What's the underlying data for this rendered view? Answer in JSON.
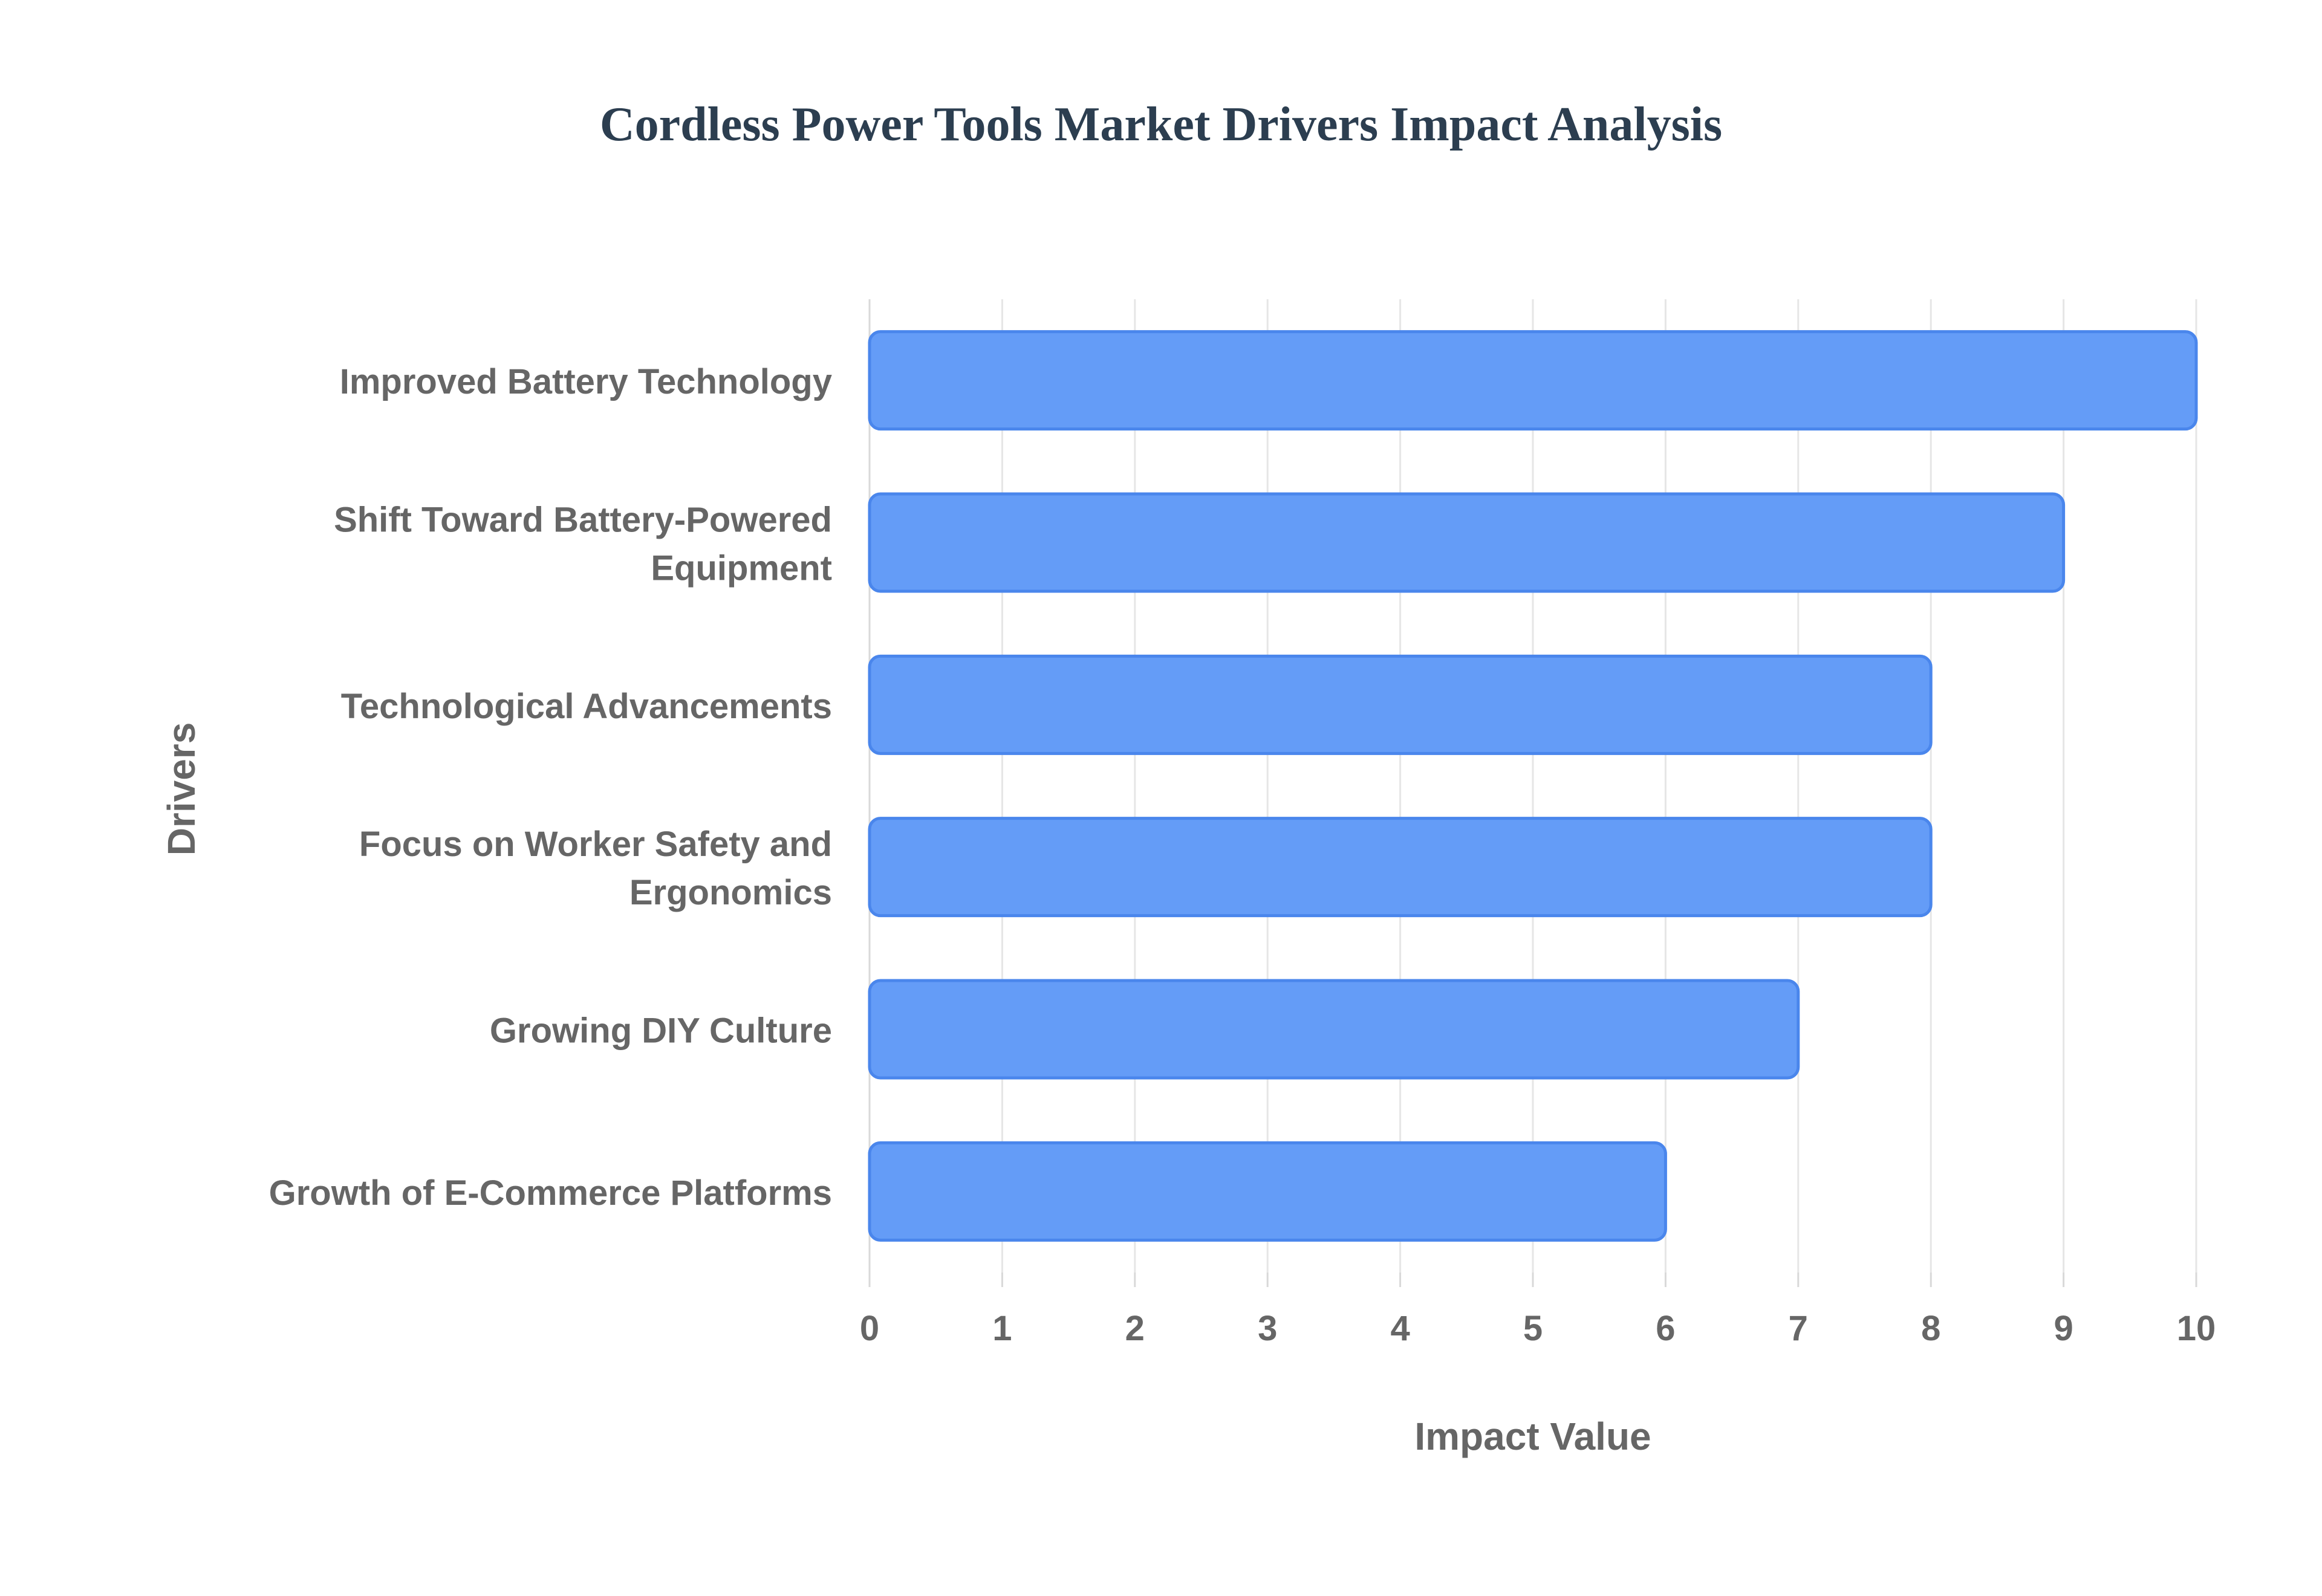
{
  "chart_data": {
    "type": "bar",
    "orientation": "horizontal",
    "title": "Cordless Power Tools Market Drivers Impact Analysis",
    "xlabel": "Impact Value",
    "ylabel": "Drivers",
    "categories": [
      "Improved Battery Technology",
      "Shift Toward Battery-Powered Equipment",
      "Technological Advancements",
      "Focus on Worker Safety and Ergonomics",
      "Growing DIY Culture",
      "Growth of E-Commerce Platforms"
    ],
    "category_lines": [
      [
        "Improved Battery Technology"
      ],
      [
        "Shift Toward Battery-Powered",
        "Equipment"
      ],
      [
        "Technological Advancements"
      ],
      [
        "Focus on Worker Safety and",
        "Ergonomics"
      ],
      [
        "Growing DIY Culture"
      ],
      [
        "Growth of E-Commerce Platforms"
      ]
    ],
    "values": [
      10,
      9,
      8,
      8,
      7,
      6
    ],
    "xlim": [
      0,
      10
    ],
    "xticks": [
      0,
      1,
      2,
      3,
      4,
      5,
      6,
      7,
      8,
      9,
      10
    ],
    "grid": true,
    "colors": {
      "bar_fill": "#649cf7",
      "bar_stroke": "#4a86ec",
      "title": "#2c3e50",
      "text": "#666666",
      "grid": "#e6e6e6"
    }
  }
}
